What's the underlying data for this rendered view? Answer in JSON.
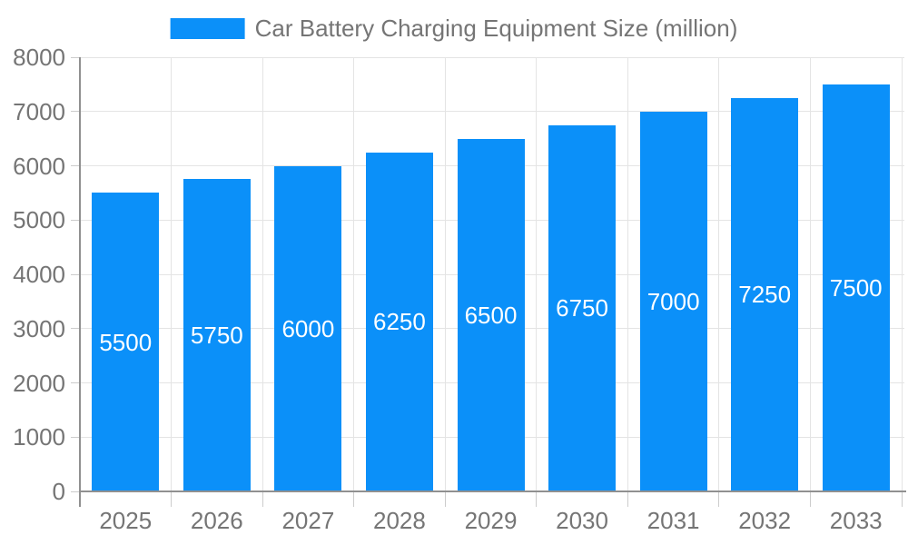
{
  "legend": {
    "label": "Car Battery Charging Equipment Size (million)",
    "swatch_color": "#0b90f9"
  },
  "chart_data": {
    "type": "bar",
    "title": "Car Battery Charging Equipment Size (million)",
    "categories": [
      "2025",
      "2026",
      "2027",
      "2028",
      "2029",
      "2030",
      "2031",
      "2032",
      "2033"
    ],
    "series": [
      {
        "name": "Car Battery Charging Equipment Size (million)",
        "values": [
          5500,
          5750,
          6000,
          6250,
          6500,
          6750,
          7000,
          7250,
          7500
        ]
      }
    ],
    "xlabel": "",
    "ylabel": "",
    "ylim": [
      0,
      8000
    ],
    "yticks": [
      0,
      1000,
      2000,
      3000,
      4000,
      5000,
      6000,
      7000,
      8000
    ],
    "grid": true,
    "legend_position": "top-center",
    "value_labels_position": "inside-center",
    "colors": {
      "bar": "#0b90f9",
      "grid_line": "#e4e4e4",
      "tick_line": "#cccccc",
      "axis_line": "#909090",
      "axis_text": "#757575",
      "value_text": "#ffffff",
      "background": "#ffffff"
    }
  }
}
